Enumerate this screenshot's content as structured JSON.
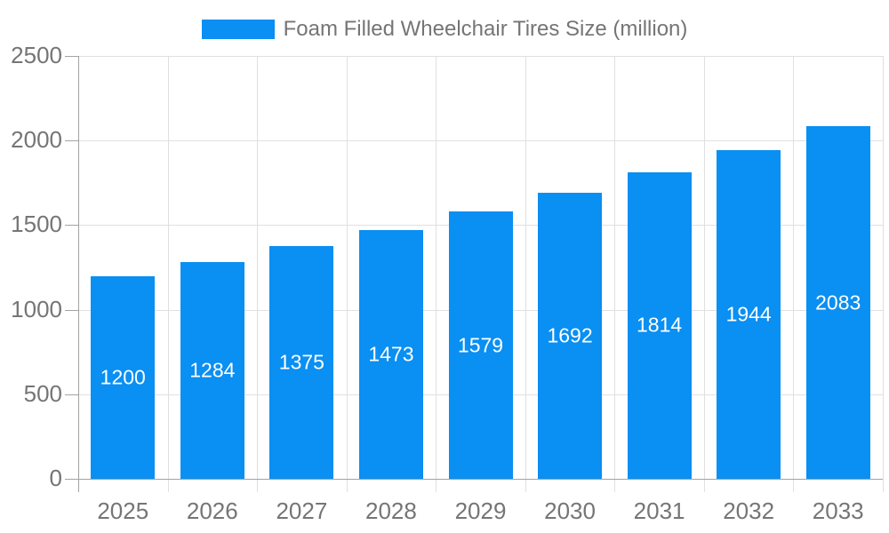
{
  "chart_data": {
    "type": "bar",
    "title": "Foam Filled Wheelchair Tires Size (million)",
    "series_name": "Foam Filled Wheelchair Tires Size (million)",
    "categories": [
      "2025",
      "2026",
      "2027",
      "2028",
      "2029",
      "2030",
      "2031",
      "2032",
      "2033"
    ],
    "values": [
      1200,
      1284,
      1375,
      1473,
      1579,
      1692,
      1814,
      1944,
      2083
    ],
    "value_labels_shown": true,
    "xlabel": "",
    "ylabel": "",
    "ylim": [
      0,
      2500
    ],
    "ytick_labels": [
      "0",
      "500",
      "1000",
      "1500",
      "2000",
      "2500"
    ],
    "ytick_values": [
      0,
      500,
      1000,
      1500,
      2000,
      2500
    ],
    "grid": true,
    "legend_position": "top-center",
    "colors": {
      "bar": "#0a8ff2",
      "value_label": "#ffffff",
      "axis_label": "#757575",
      "grid_line": "#e0e0e0",
      "axis_line": "#a3a3a3",
      "background": "#ffffff"
    }
  }
}
